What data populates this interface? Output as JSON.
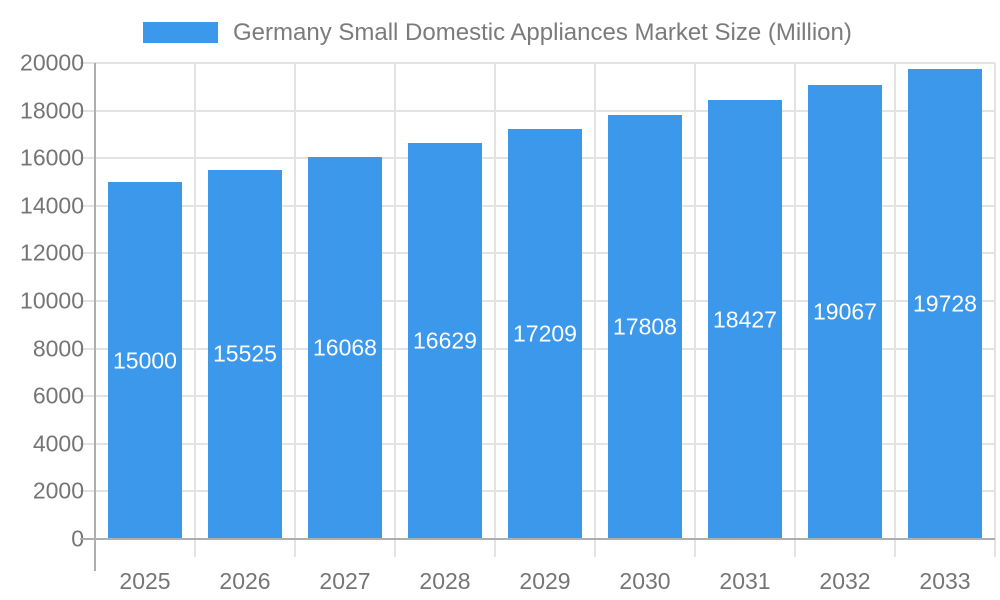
{
  "legend": {
    "label": "Germany Small Domestic Appliances Market Size (Million)"
  },
  "colors": {
    "bar": "#3B98EB",
    "grid": "#E3E3E3",
    "axis": "#AEAEAE",
    "tick_text": "#757575",
    "legend_text": "#7B7B7B",
    "value_label": "#FFFFFF",
    "background": "#FFFFFF"
  },
  "chart_data": {
    "type": "bar",
    "title": "Germany Small Domestic Appliances Market Size (Million)",
    "categories": [
      "2025",
      "2026",
      "2027",
      "2028",
      "2029",
      "2030",
      "2031",
      "2032",
      "2033"
    ],
    "values": [
      15000,
      15525,
      16068,
      16629,
      17209,
      17808,
      18427,
      19067,
      19728
    ],
    "xlabel": "",
    "ylabel": "",
    "ylim": [
      0,
      20000
    ],
    "yticks": [
      0,
      2000,
      4000,
      6000,
      8000,
      10000,
      12000,
      14000,
      16000,
      18000,
      20000
    ],
    "grid": true,
    "legend_position": "top",
    "value_labels": "inside-center",
    "bar_color": "#3B98EB"
  }
}
